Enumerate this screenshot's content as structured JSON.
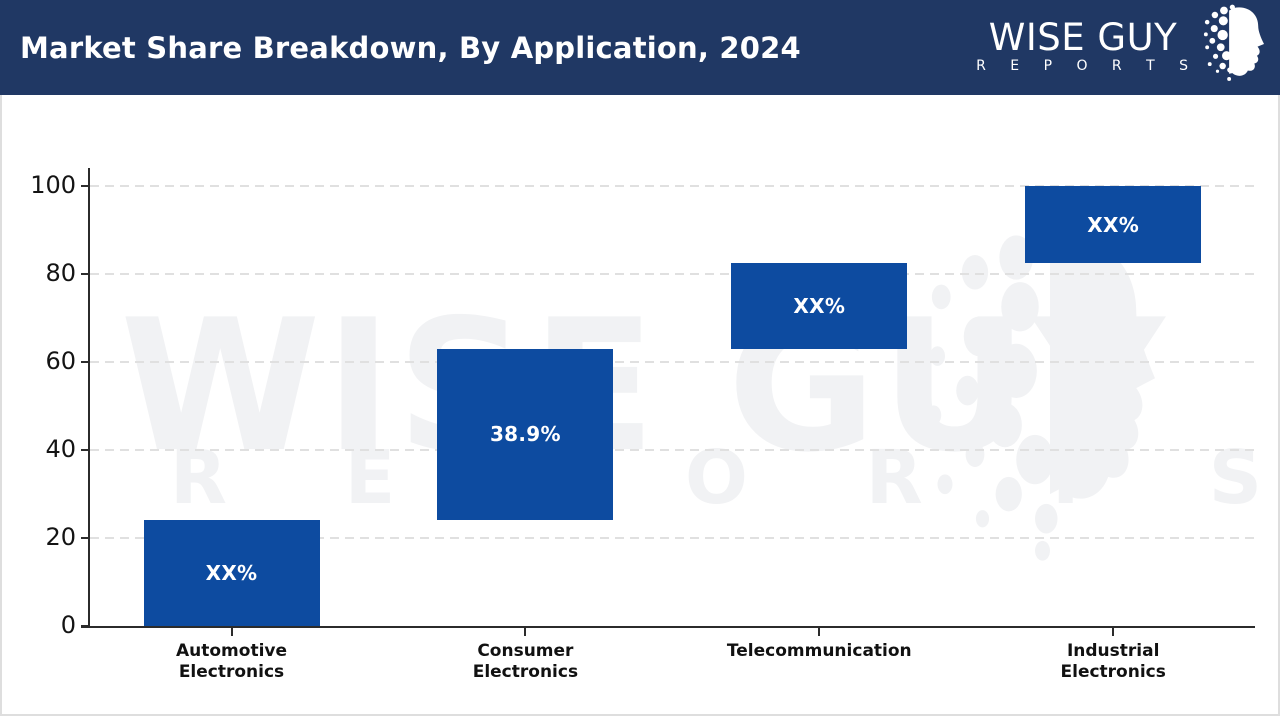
{
  "header": {
    "title": "Market Share Breakdown, By Application, 2024",
    "brand_line1": "WISE GUY",
    "brand_line2": "R E P O R T S"
  },
  "watermark": {
    "line1": "WISE GUY",
    "line2": "R E P O R T S"
  },
  "colors": {
    "header_bg": "#203864",
    "bar": "#0d4ba0",
    "grid": "#e0e0e0",
    "axis": "#2b2b2b",
    "watermark": "#f1f2f4"
  },
  "chart_data": {
    "type": "bar",
    "subtype": "waterfall (floating cumulative market-share segments)",
    "title": "Market Share Breakdown, By Application, 2024",
    "xlabel": "",
    "ylabel": "",
    "ylim": [
      0,
      105
    ],
    "yticks": [
      0,
      20,
      40,
      60,
      80,
      100
    ],
    "grid": "horizontal dashed",
    "legend": "none",
    "categories": [
      "Automotive Electronics",
      "Consumer Electronics",
      "Telecommunication",
      "Industrial Electronics"
    ],
    "category_label_lines": [
      [
        "Automotive",
        "Electronics"
      ],
      [
        "Consumer",
        "Electronics"
      ],
      [
        "Telecommunication"
      ],
      [
        "Industrial",
        "Electronics"
      ]
    ],
    "bars": [
      {
        "category": "Automotive Electronics",
        "label": "XX%",
        "start": 0,
        "end": 24.1,
        "value_pct": 24.1
      },
      {
        "category": "Consumer Electronics",
        "label": "38.9%",
        "start": 24.1,
        "end": 63.0,
        "value_pct": 38.9
      },
      {
        "category": "Telecommunication",
        "label": "XX%",
        "start": 63.0,
        "end": 82.5,
        "value_pct": 19.5
      },
      {
        "category": "Industrial Electronics",
        "label": "XX%",
        "start": 82.5,
        "end": 100,
        "value_pct": 17.5
      }
    ],
    "bar_color": "#0d4ba0"
  }
}
